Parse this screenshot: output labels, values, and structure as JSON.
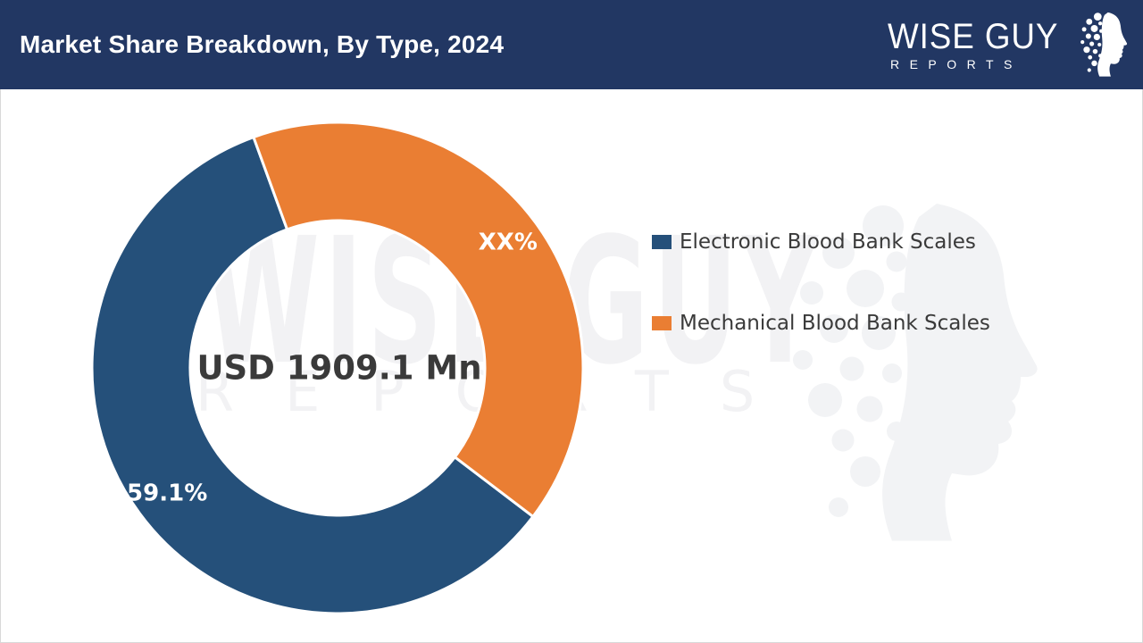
{
  "header": {
    "title": "Market Share Breakdown, By Type, 2024",
    "logo": {
      "brand_line1": "WISE GUY",
      "brand_line2": "REPORTS"
    }
  },
  "chart_data": {
    "type": "pie",
    "subtype": "donut",
    "title": "Market Share Breakdown, By Type, 2024",
    "center_label": "USD 1909.1 Mn",
    "categories": [
      "Electronic Blood Bank Scales",
      "Mechanical Blood Bank Scales"
    ],
    "values": [
      59.1,
      40.9
    ],
    "value_labels": [
      "59.1%",
      "XX%"
    ],
    "colors": [
      "#25507A",
      "#EA7E33"
    ],
    "start_angle_deg": 110,
    "direction": "counterclockwise",
    "inner_radius_ratio": 0.6,
    "label_radius_ratio": 0.862,
    "legend_position": "right"
  },
  "legend": {
    "items": [
      {
        "label": "Electronic Blood Bank Scales",
        "color": "#25507A"
      },
      {
        "label": "Mechanical Blood Bank Scales",
        "color": "#EA7E33"
      }
    ]
  },
  "watermark": {
    "line1": "WISE GUY",
    "line2": "REPORTS"
  }
}
